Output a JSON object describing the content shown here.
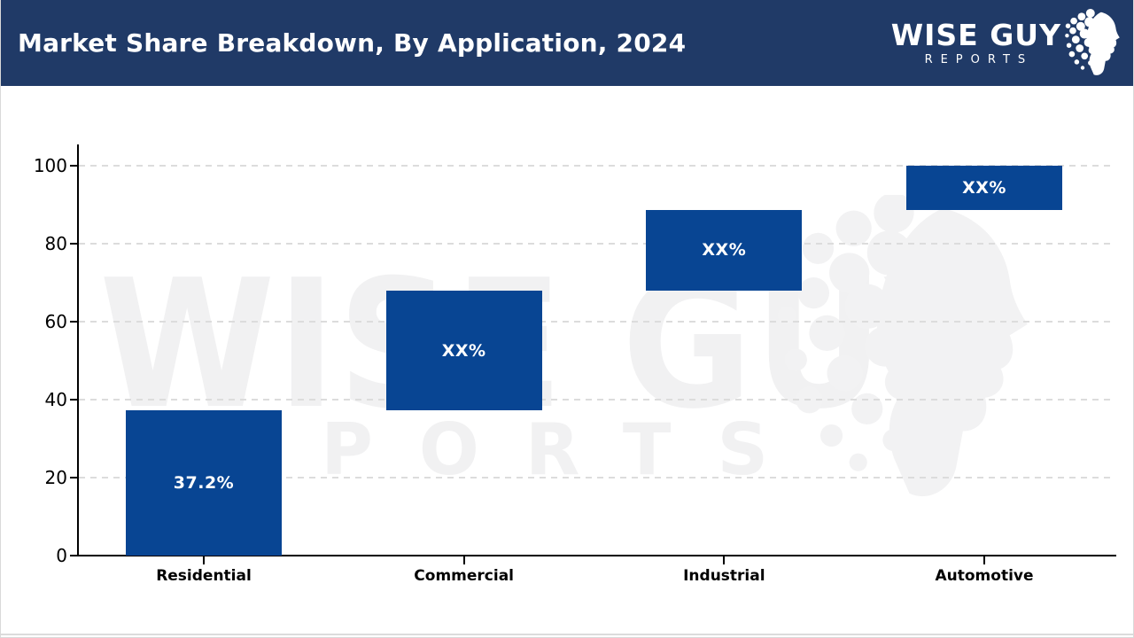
{
  "header": {
    "title": "Market Share Breakdown, By Application, 2024",
    "logo": {
      "name": "WISE GUY",
      "sub": "REPORTS"
    }
  },
  "watermark": {
    "name": "WISE GUY",
    "sub": "REPORTS"
  },
  "colors": {
    "header_bg": "#203a67",
    "bar": "#084593",
    "grid": "#dcdcdc",
    "axis": "#000000",
    "bar_label": "#ffffff",
    "watermark": "#f1f1f2",
    "footer_line": "#dcdcdc"
  },
  "chart_data": {
    "type": "bar",
    "subtype": "waterfall",
    "title": "Market Share Breakdown, By Application, 2024",
    "categories": [
      "Residential",
      "Commercial",
      "Industrial",
      "Automotive"
    ],
    "segments": [
      {
        "category": "Residential",
        "start": 0,
        "end": 37.2,
        "value": 37.2,
        "label": "37.2%"
      },
      {
        "category": "Commercial",
        "start": 37.2,
        "end": 68,
        "value": 30.8,
        "label": "XX%"
      },
      {
        "category": "Industrial",
        "start": 68,
        "end": 88.7,
        "value": 20.7,
        "label": "XX%"
      },
      {
        "category": "Automotive",
        "start": 88.7,
        "end": 100,
        "value": 11.3,
        "label": "XX%"
      }
    ],
    "yticks": [
      0,
      20,
      40,
      60,
      80,
      100
    ],
    "ylim": [
      0,
      105
    ],
    "xlabel": "",
    "ylabel": "",
    "grid": "horizontal-dashed",
    "legend": "none"
  }
}
